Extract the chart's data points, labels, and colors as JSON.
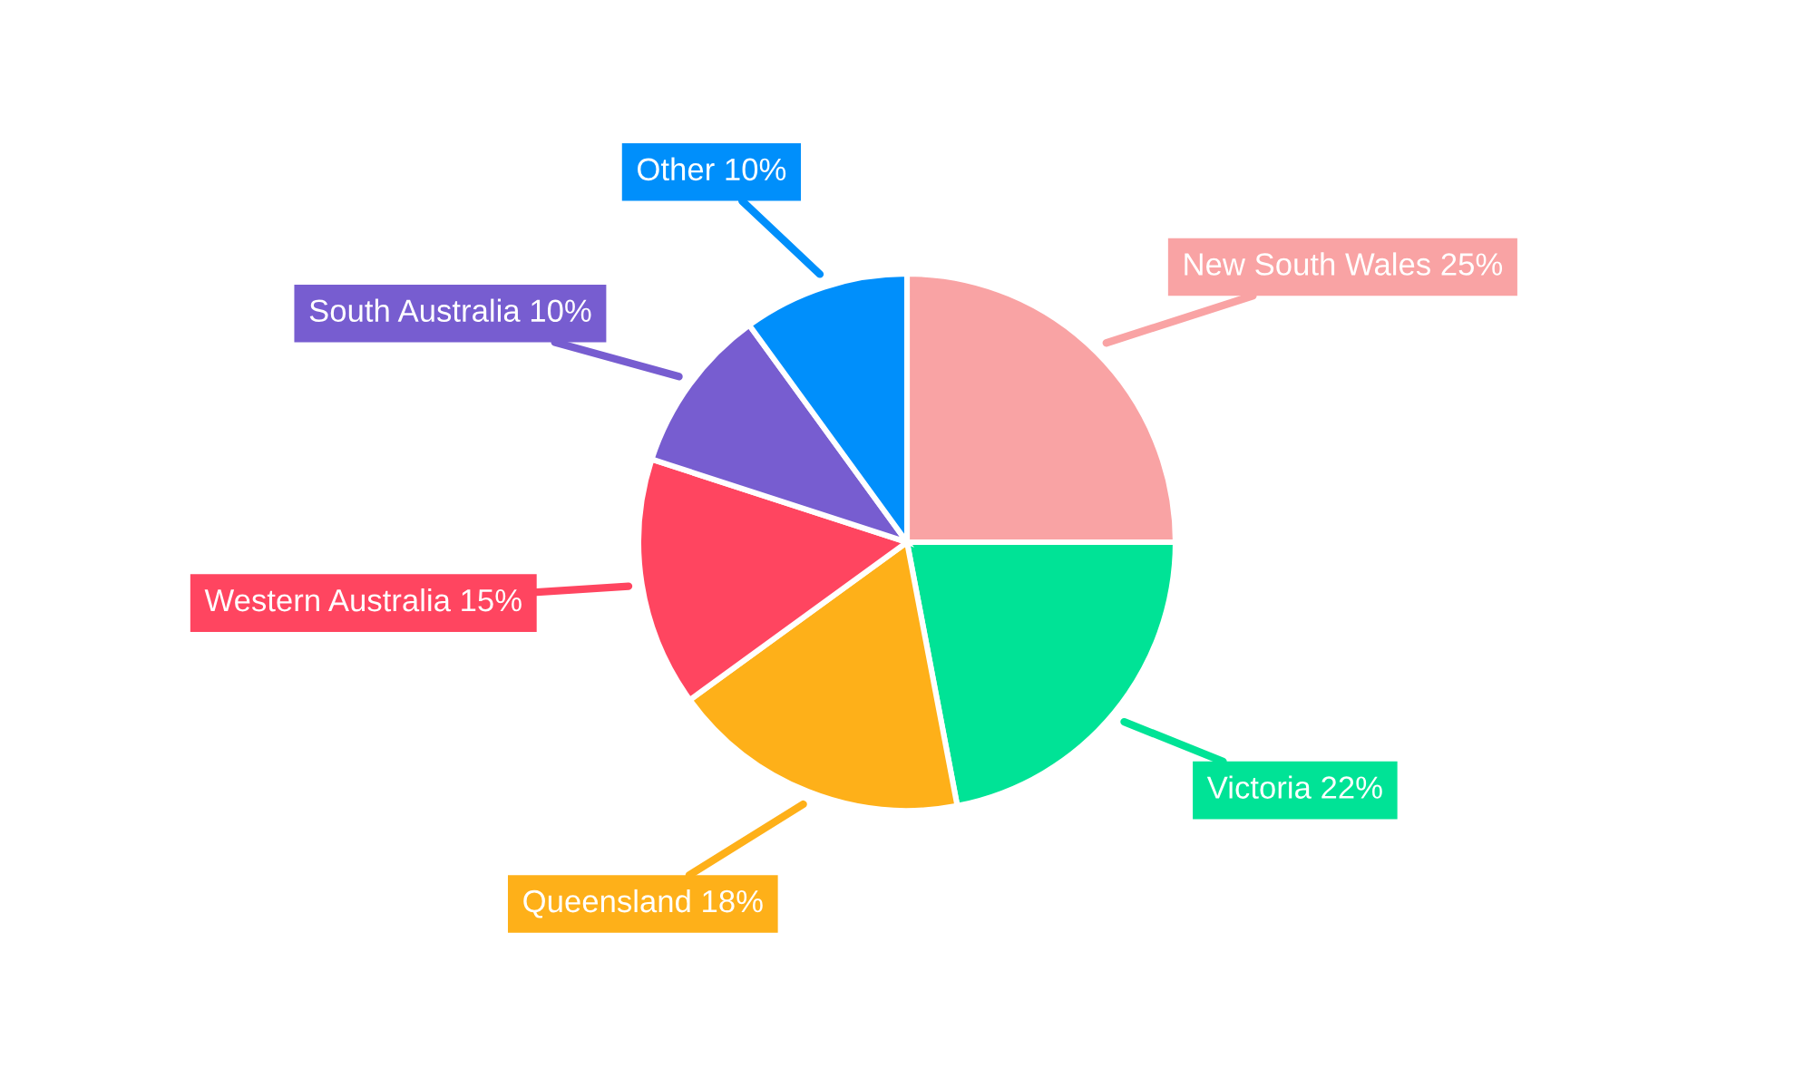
{
  "chart_data": {
    "type": "pie",
    "categories": [
      "New South Wales",
      "Victoria",
      "Queensland",
      "Western Australia",
      "South Australia",
      "Other"
    ],
    "values": [
      25,
      22,
      18,
      15,
      10,
      10
    ],
    "value_labels": [
      "25%",
      "22%",
      "18%",
      "15%",
      "10%",
      "10%"
    ],
    "colors": [
      "#f9a3a4",
      "#00e396",
      "#feb019",
      "#ff4560",
      "#775dd0",
      "#008ffb"
    ],
    "legend": false
  }
}
